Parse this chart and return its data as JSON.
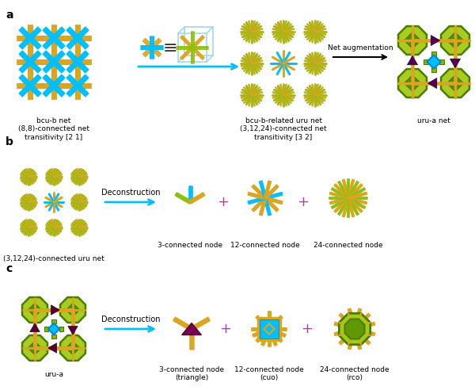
{
  "bg_color": "#ffffff",
  "cyan": "#00BFFF",
  "gold": "#DAA520",
  "gold2": "#C8960A",
  "green": "#8DC010",
  "dark_green": "#4A7C00",
  "green2": "#6B9A10",
  "purple": "#550055",
  "magenta": "#CC44CC",
  "label_a": "a",
  "label_b": "b",
  "label_c": "c",
  "text_bcu_b": "bcu-b net\n(8,8)-connected net\ntransitivity [2 1]",
  "text_bcu_b_uru": "bcu-b-related uru net\n(3,12,24)-connected net\ntransitivity [3 2]",
  "text_uru_a_net": "uru-a net",
  "text_net_aug": "Net augmentation",
  "text_deconstruction": "Deconstruction",
  "text_3node": "3-connected node",
  "text_12node": "12-connected node",
  "text_24node": "24-connected node",
  "text_3node_tri": "3-connected node\n(triangle)",
  "text_12node_cuo": "12-connected node\n(cuo)",
  "text_24node_rco": "24-connected node\n(rco)",
  "text_uru_net": "(3,12,24)-connected uru net",
  "text_uru_a": "uru-a"
}
